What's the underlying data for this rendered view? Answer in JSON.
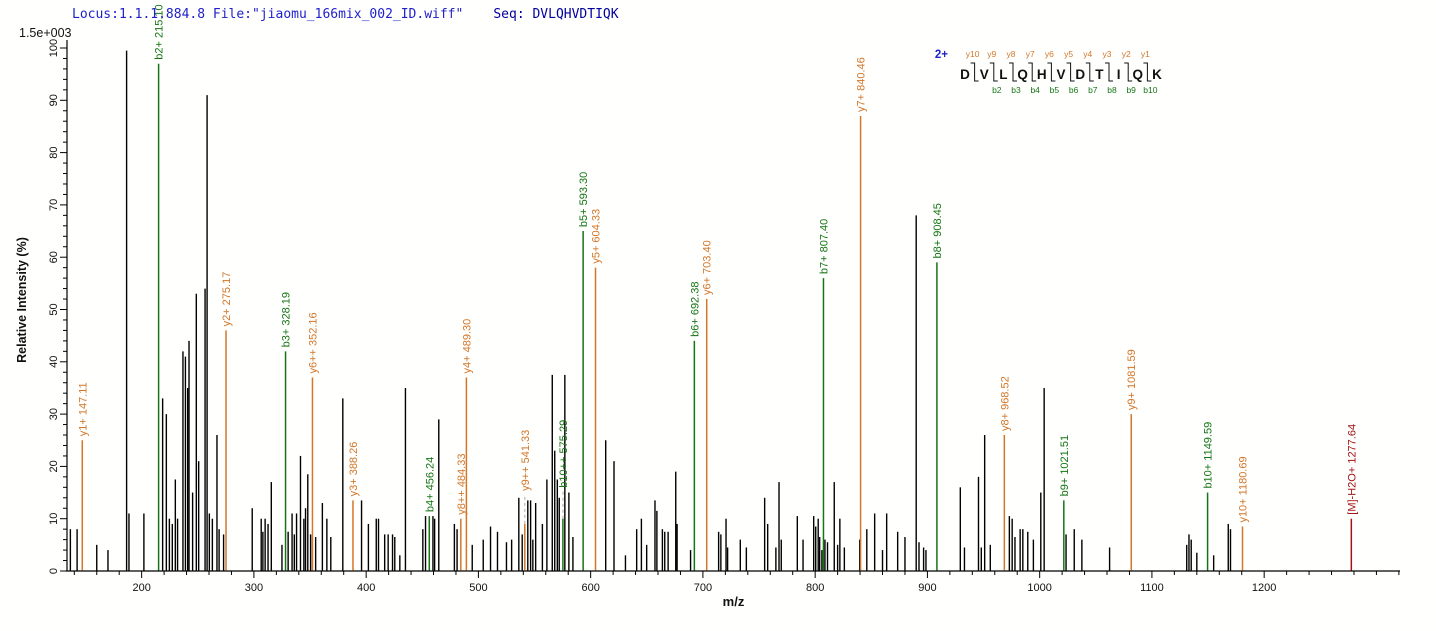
{
  "header": {
    "locus_file": "Locus:1.1.1.884.8 File:\"jiaomu_166mix_002_ID.wiff\"",
    "seq": "Seq: DVLQHVDTIQK"
  },
  "axes": {
    "intensity_scale": "1.5e+003",
    "ylabel": "Relative  Intensity (%)",
    "xlabel": "m/z"
  },
  "colors": {
    "b_ion": "#157515",
    "y_ion": "#d2772a",
    "precursor_ion": "#a31515",
    "peak": "#000000",
    "leader": "#aaaaaa",
    "header_blue": "#2121cc",
    "axis": "#000000"
  },
  "peptide": {
    "charge": "2+",
    "residues": [
      "D",
      "V",
      "L",
      "Q",
      "H",
      "V",
      "D",
      "T",
      "I",
      "Q",
      "K"
    ],
    "y_ions": [
      "y10",
      "y9",
      "y8",
      "y7",
      "y6",
      "y5",
      "y4",
      "y3",
      "y2",
      "y1"
    ],
    "b_ions": [
      "b2",
      "b3",
      "b4",
      "b5",
      "b6",
      "b7",
      "b8",
      "b9",
      "b10"
    ]
  },
  "chart_data": {
    "type": "bar",
    "subtype": "mass-spectrum",
    "xlabel": "m/z",
    "ylabel": "Relative  Intensity (%)",
    "xlim": [
      133.5,
      1321
    ],
    "ylim": [
      0,
      100
    ],
    "x_ticks": [
      200,
      300,
      400,
      500,
      600,
      700,
      800,
      900,
      1000,
      1100,
      1200
    ],
    "y_ticks": [
      0,
      10,
      20,
      30,
      40,
      50,
      60,
      70,
      80,
      90,
      100
    ],
    "x_minor_step": 20,
    "y_minor_step": 2,
    "grid": false,
    "annotated_peaks": [
      {
        "label": "y1+ 147.11",
        "mz": 147.11,
        "intensity": 25,
        "ion": "y"
      },
      {
        "label": "b2+ 215.10",
        "mz": 215.1,
        "intensity": 97,
        "ion": "b"
      },
      {
        "label": "y2+ 275.17",
        "mz": 275.17,
        "intensity": 46,
        "ion": "y"
      },
      {
        "label": "b3+ 328.19",
        "mz": 328.19,
        "intensity": 42,
        "ion": "b"
      },
      {
        "label": "y6++ 352.16",
        "mz": 352.16,
        "intensity": 37,
        "ion": "y"
      },
      {
        "label": "y3+ 388.26",
        "mz": 388.26,
        "intensity": 13.5,
        "ion": "y"
      },
      {
        "label": "b4+ 456.24",
        "mz": 456.24,
        "intensity": 10.5,
        "ion": "b"
      },
      {
        "label": "y8++ 484.33",
        "mz": 484.33,
        "intensity": 10,
        "ion": "y"
      },
      {
        "label": "y4+ 489.30",
        "mz": 489.3,
        "intensity": 37,
        "ion": "y"
      },
      {
        "label": "y9++ 541.33",
        "mz": 541.33,
        "intensity": 9,
        "ion": "y",
        "leader": 30
      },
      {
        "label": "b10++ 575.29",
        "mz": 575.29,
        "intensity": 10,
        "ion": "b",
        "leader": 28
      },
      {
        "label": "b5+ 593.30",
        "mz": 593.3,
        "intensity": 65,
        "ion": "b"
      },
      {
        "label": "y5+ 604.33",
        "mz": 604.33,
        "intensity": 58,
        "ion": "y"
      },
      {
        "label": "b6+ 692.38",
        "mz": 692.38,
        "intensity": 44,
        "ion": "b"
      },
      {
        "label": "y6+ 703.40",
        "mz": 703.4,
        "intensity": 52,
        "ion": "y"
      },
      {
        "label": "b7+ 807.40",
        "mz": 807.4,
        "intensity": 56,
        "ion": "b"
      },
      {
        "label": "y7+ 840.46",
        "mz": 840.46,
        "intensity": 87,
        "ion": "y"
      },
      {
        "label": "b8+ 908.45",
        "mz": 908.45,
        "intensity": 59,
        "ion": "b"
      },
      {
        "label": "y8+ 968.52",
        "mz": 968.52,
        "intensity": 26,
        "ion": "y"
      },
      {
        "label": "b9+ 1021.51",
        "mz": 1021.51,
        "intensity": 13.5,
        "ion": "b"
      },
      {
        "label": "y9+ 1081.59",
        "mz": 1081.59,
        "intensity": 30,
        "ion": "y"
      },
      {
        "label": "b10+ 1149.59",
        "mz": 1149.59,
        "intensity": 15,
        "ion": "b"
      },
      {
        "label": "y10+ 1180.69",
        "mz": 1180.69,
        "intensity": 8.5,
        "ion": "y"
      },
      {
        "label": "[M]-H2O+ 1277.64",
        "mz": 1277.64,
        "intensity": 10,
        "ion": "precursor"
      }
    ],
    "peaks": [
      [
        136.5,
        8
      ],
      [
        142.5,
        8
      ],
      [
        160,
        5
      ],
      [
        170,
        4
      ],
      [
        186.6,
        99.5
      ],
      [
        188.7,
        11
      ],
      [
        202,
        11
      ],
      [
        218.7,
        33
      ],
      [
        222,
        30
      ],
      [
        224.7,
        10
      ],
      [
        227.3,
        9
      ],
      [
        230,
        17.5
      ],
      [
        232,
        10
      ],
      [
        236.8,
        42
      ],
      [
        239,
        41
      ],
      [
        241,
        35
      ],
      [
        242.2,
        44
      ],
      [
        245.4,
        15
      ],
      [
        248.7,
        53
      ],
      [
        250.8,
        21
      ],
      [
        256.5,
        54
      ],
      [
        258.3,
        91
      ],
      [
        260.3,
        11
      ],
      [
        263,
        10
      ],
      [
        267.1,
        26
      ],
      [
        269,
        8
      ],
      [
        273,
        7
      ],
      [
        298.5,
        12
      ],
      [
        306.5,
        10
      ],
      [
        308,
        7.5
      ],
      [
        310,
        10
      ],
      [
        312.6,
        9
      ],
      [
        315.5,
        17
      ],
      [
        325,
        5
      ],
      [
        330.5,
        7.5
      ],
      [
        334,
        11
      ],
      [
        336,
        7
      ],
      [
        338,
        11
      ],
      [
        341.5,
        22
      ],
      [
        344.5,
        10
      ],
      [
        346,
        12
      ],
      [
        348,
        18.5
      ],
      [
        350.5,
        7
      ],
      [
        355,
        6.5
      ],
      [
        361,
        13
      ],
      [
        365,
        10
      ],
      [
        368.5,
        6.5
      ],
      [
        379.2,
        33
      ],
      [
        395.9,
        13.5
      ],
      [
        402,
        9
      ],
      [
        409,
        10
      ],
      [
        411,
        10
      ],
      [
        416.5,
        7
      ],
      [
        419.6,
        7
      ],
      [
        423.5,
        7
      ],
      [
        425.5,
        6.5
      ],
      [
        430,
        3
      ],
      [
        435,
        35
      ],
      [
        450.5,
        8
      ],
      [
        452.9,
        10.5
      ],
      [
        459.5,
        10.5
      ],
      [
        461,
        10
      ],
      [
        464.7,
        29
      ],
      [
        478.6,
        9
      ],
      [
        481,
        8
      ],
      [
        494.5,
        5
      ],
      [
        504.3,
        6
      ],
      [
        510.8,
        8.5
      ],
      [
        517,
        7.5
      ],
      [
        525,
        5.5
      ],
      [
        529.6,
        6
      ],
      [
        536,
        14
      ],
      [
        539,
        7
      ],
      [
        544,
        13.5
      ],
      [
        546.5,
        13.5
      ],
      [
        548.5,
        6
      ],
      [
        551,
        13
      ],
      [
        557,
        9
      ],
      [
        561,
        17.5
      ],
      [
        565.8,
        37.5
      ],
      [
        568,
        23
      ],
      [
        570.3,
        17.5
      ],
      [
        572,
        14
      ],
      [
        577,
        37.5
      ],
      [
        580.6,
        15
      ],
      [
        584.2,
        6.5
      ],
      [
        613.4,
        25
      ],
      [
        620.8,
        21
      ],
      [
        631,
        3
      ],
      [
        641,
        8
      ],
      [
        645.2,
        10
      ],
      [
        649.9,
        5
      ],
      [
        657.3,
        13.5
      ],
      [
        659,
        11.5
      ],
      [
        663.9,
        8
      ],
      [
        666,
        7.5
      ],
      [
        669,
        7.5
      ],
      [
        675.8,
        19
      ],
      [
        677,
        9
      ],
      [
        689,
        4
      ],
      [
        714,
        7.5
      ],
      [
        716,
        7
      ],
      [
        720.6,
        10
      ],
      [
        722,
        4.5
      ],
      [
        733.3,
        6
      ],
      [
        738.7,
        4.5
      ],
      [
        755,
        14
      ],
      [
        757.7,
        9
      ],
      [
        765,
        4.5
      ],
      [
        767.8,
        17
      ],
      [
        769.8,
        6
      ],
      [
        784.1,
        10.5
      ],
      [
        789.2,
        6
      ],
      [
        798.7,
        10.5
      ],
      [
        800.5,
        8.5
      ],
      [
        802.7,
        10
      ],
      [
        804,
        6.5
      ],
      [
        806,
        4
      ],
      [
        808.7,
        6
      ],
      [
        811,
        5.5
      ],
      [
        817,
        17
      ],
      [
        820,
        5
      ],
      [
        822,
        10
      ],
      [
        826,
        4.5
      ],
      [
        839.7,
        6
      ],
      [
        846,
        8
      ],
      [
        853,
        11
      ],
      [
        860,
        4
      ],
      [
        863.7,
        11
      ],
      [
        873.5,
        7.5
      ],
      [
        880,
        6.5
      ],
      [
        890,
        68
      ],
      [
        892.5,
        5.5
      ],
      [
        896.6,
        4.5
      ],
      [
        898.7,
        4
      ],
      [
        929.3,
        16
      ],
      [
        933,
        4.5
      ],
      [
        945.5,
        18
      ],
      [
        948,
        4.5
      ],
      [
        951,
        26
      ],
      [
        956,
        5
      ],
      [
        973,
        10.5
      ],
      [
        975.5,
        10
      ],
      [
        978,
        6.5
      ],
      [
        982.6,
        8
      ],
      [
        985,
        8
      ],
      [
        989.4,
        7.5
      ],
      [
        994.4,
        6
      ],
      [
        1001,
        15
      ],
      [
        1004,
        35
      ],
      [
        1023.5,
        7
      ],
      [
        1030.8,
        8
      ],
      [
        1037.6,
        6
      ],
      [
        1062.3,
        4.5
      ],
      [
        1131,
        5
      ],
      [
        1133,
        7
      ],
      [
        1135,
        6
      ],
      [
        1140,
        3.5
      ],
      [
        1155,
        3
      ],
      [
        1168,
        9
      ],
      [
        1170,
        8
      ]
    ]
  }
}
